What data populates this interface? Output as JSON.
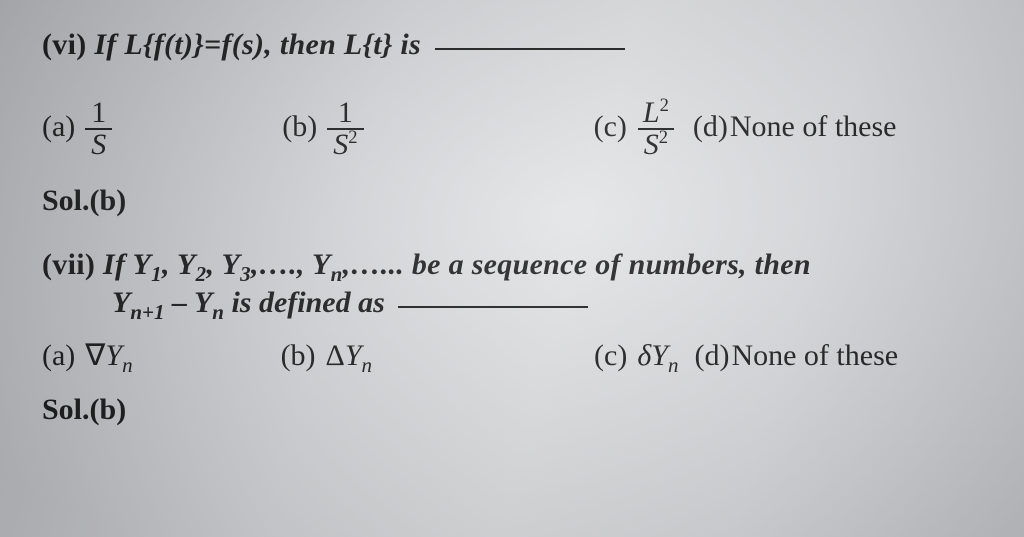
{
  "q6": {
    "roman": "(vi)",
    "stem_html": "If L{f(t)}=f(s), then L{t} is",
    "options": {
      "a": {
        "label": "(a)",
        "num": "1",
        "den_html": "S"
      },
      "b": {
        "label": "(b)",
        "num": "1",
        "den_html": "S<sup>2</sup>"
      },
      "c": {
        "label": "(c)",
        "num_html": "L<sup>2</sup>",
        "den_html": "S<sup>2</sup>"
      },
      "d": {
        "label": "(d)",
        "text": "None of these"
      }
    },
    "sol": "Sol.(b)"
  },
  "q7": {
    "roman": "(vii)",
    "line1_html": "If Y<sub>1</sub>, Y<sub>2</sub>, Y<sub>3</sub>,…., Y<sub>n</sub>,…... be a sequence of numbers, then",
    "line2_html": "Y<sub>n+1</sub> – Y<sub>n</sub> is defined as",
    "options": {
      "a": {
        "label": "(a)",
        "sym": "∇",
        "var_html": "Y<sub>n</sub>"
      },
      "b": {
        "label": "(b)",
        "sym": "Δ",
        "var_html": "Y<sub>n</sub>"
      },
      "c": {
        "label": "(c)",
        "sym": "δ",
        "var_html": "Y<sub>n</sub>"
      },
      "d": {
        "label": "(d)",
        "text": "None of these"
      }
    },
    "sol": "Sol.(b)"
  }
}
